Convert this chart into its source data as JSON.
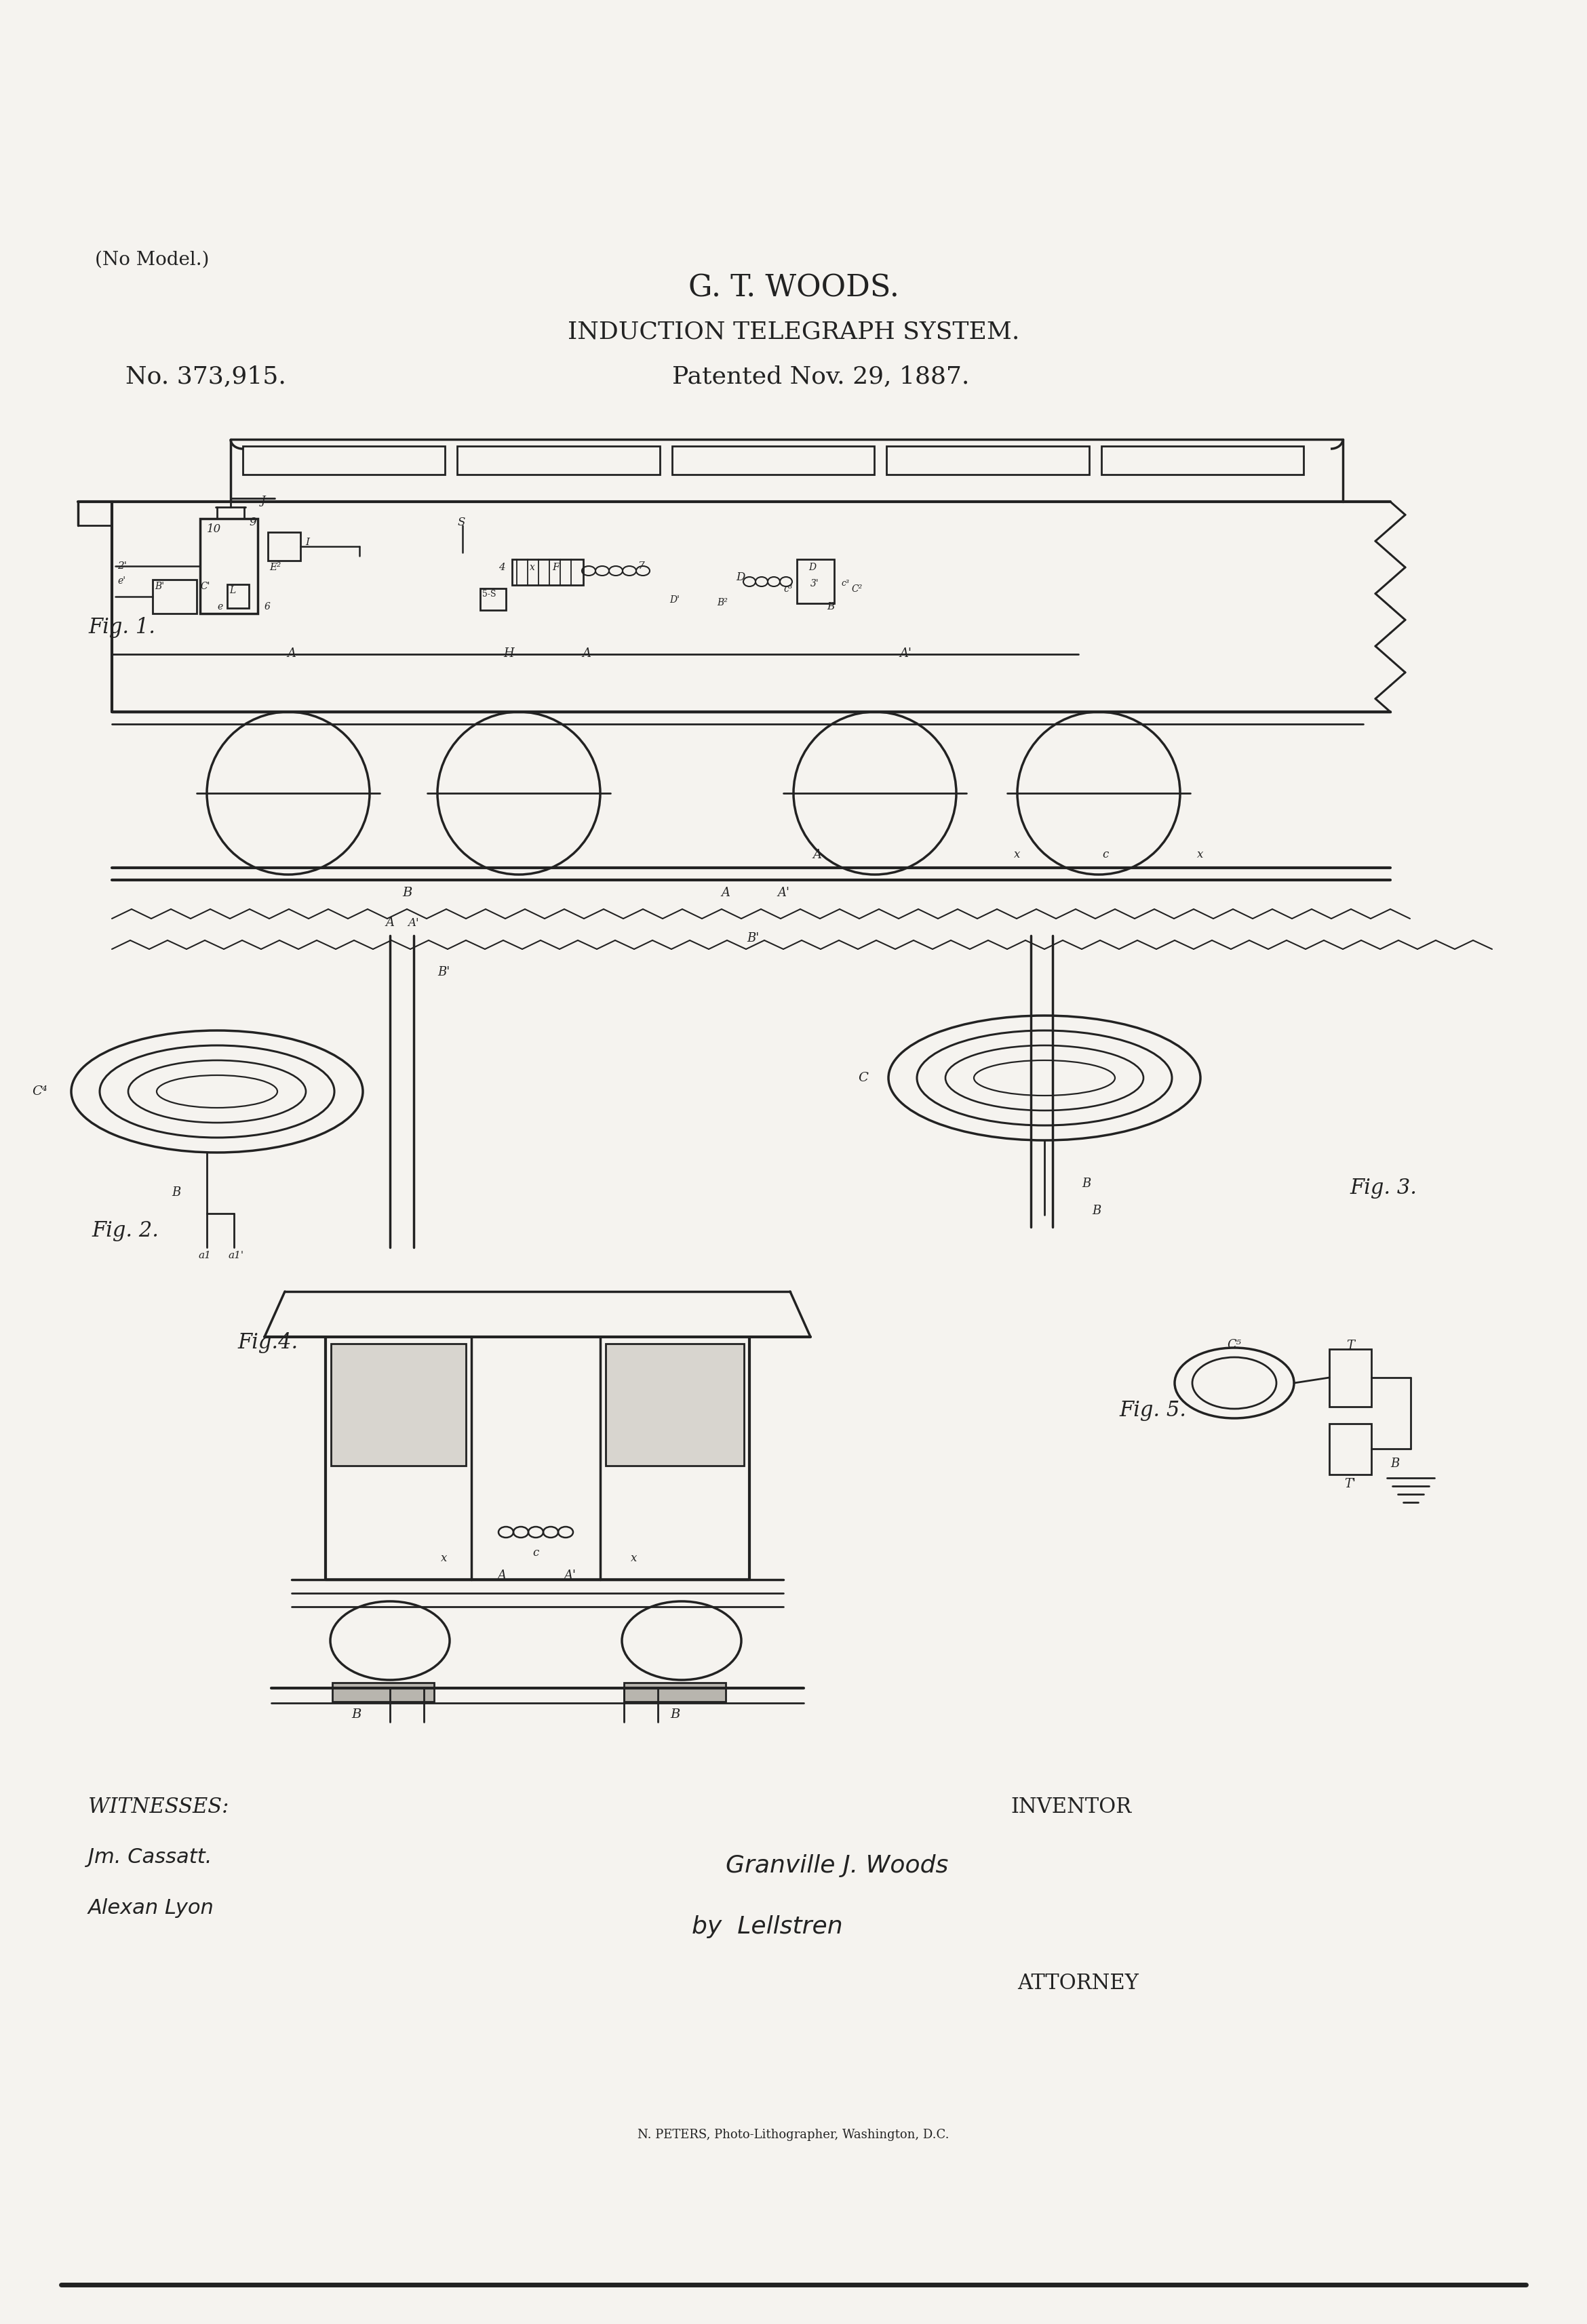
{
  "bg_color": "#f5f3ef",
  "paper_color": "#f5f3ef",
  "title_line1": "G. T. WOODS.",
  "title_line2": "INDUCTION TELEGRAPH SYSTEM.",
  "patent_no": "No. 373,915.",
  "patent_date": "Patented Nov. 29, 1887.",
  "no_model": "(No Model.)",
  "fig1_label": "Fig. 1.",
  "fig2_label": "Fig. 2.",
  "fig3_label": "Fig. 3.",
  "fig4_label": "Fig.4.",
  "fig5_label": "Fig. 5.",
  "witnesses_label": "WITNESSES:",
  "witness1": "Jm. Cassatt.",
  "witness2": "Alexan Lyon",
  "inventor_label": "INVENTOR",
  "inventor_name": "Granville J. Woods",
  "attorney_by": "by Lellstren",
  "attorney_label": "ATTORNEY",
  "printer": "N. PETERS, Photo-Lithographer, Washington, D.C.",
  "line_color": "#222222",
  "text_color": "#222222"
}
